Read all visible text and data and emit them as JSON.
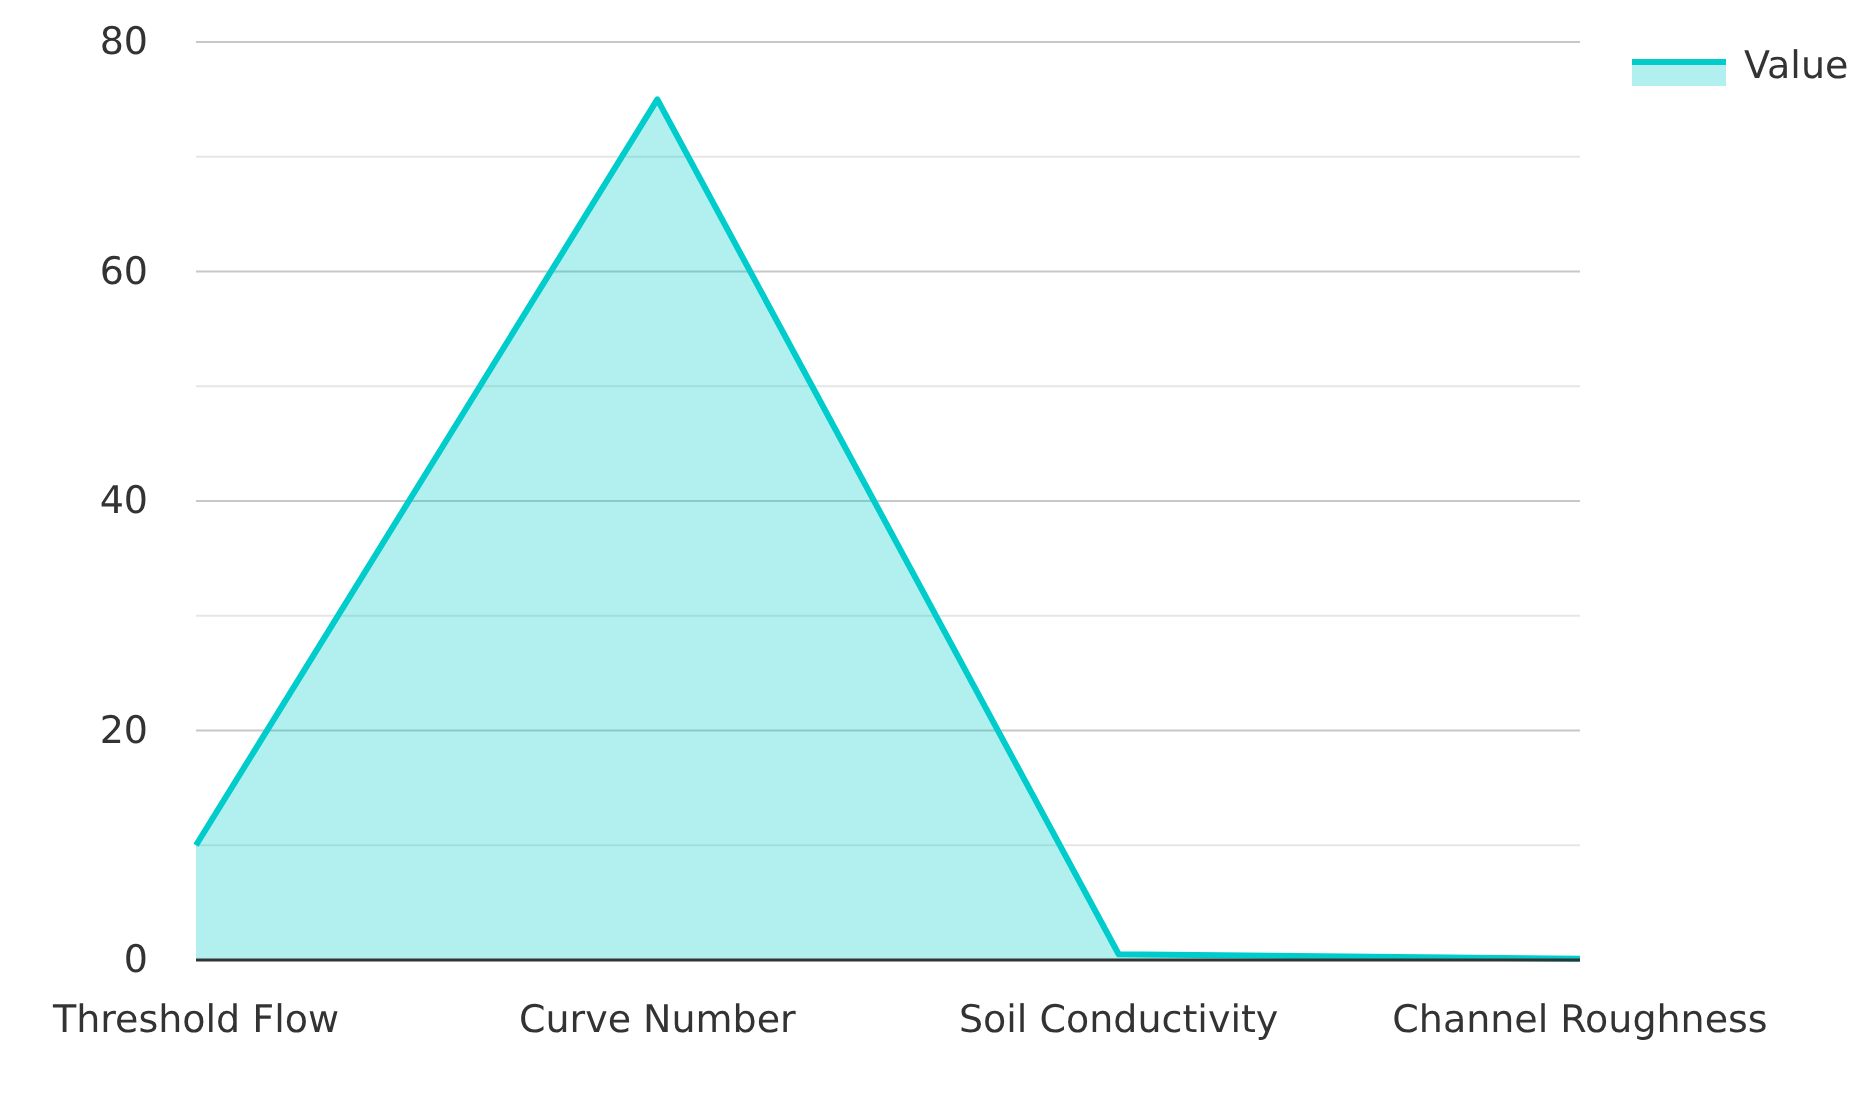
{
  "chart_data": {
    "type": "area",
    "categories": [
      "Threshold Flow",
      "Curve Number",
      "Soil Conductivity",
      "Channel Roughness"
    ],
    "series": [
      {
        "name": "Value",
        "color": "#00cccc",
        "values": [
          10,
          75,
          0.5,
          0.1
        ]
      }
    ],
    "ylim": [
      0,
      80
    ],
    "yticks": [
      0,
      {
        "value": 10,
        "label": null
      },
      20,
      {
        "value": 30,
        "label": null
      },
      40,
      {
        "value": 50,
        "label": null
      },
      60,
      {
        "value": 70,
        "label": null
      },
      80
    ],
    "grid": "y",
    "legend": "top right"
  }
}
